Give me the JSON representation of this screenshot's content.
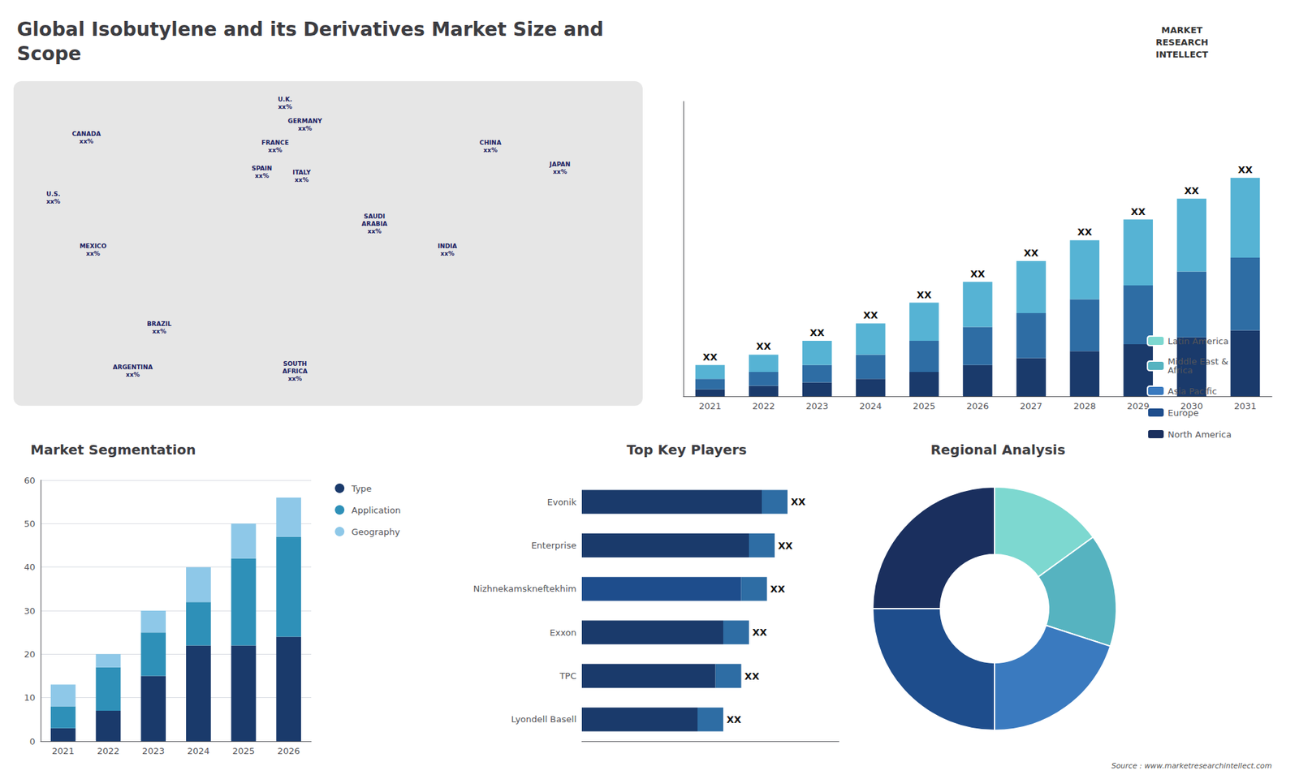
{
  "title": "Global Isobutylene and its Derivatives Market Size and\nScope",
  "annotations": [
    "MARKET\nRESEARCH\nINTELLECT",
    "Source : www.marketresearchintellect.com"
  ],
  "chart_data": [
    {
      "type": "map",
      "annotations": [
        "CANADA\nxx%",
        "U.S.\nxx%",
        "MEXICO\nxx%",
        "BRAZIL\nxx%",
        "ARGENTINA\nxx%",
        "U.K.\nxx%",
        "FRANCE\nxx%",
        "SPAIN\nxx%",
        "GERMANY\nxx%",
        "ITALY\nxx%",
        "SAUDI\nARABIA\nxx%",
        "SOUTH\nAFRICA\nxx%",
        "CHINA\nxx%",
        "INDIA\nxx%",
        "JAPAN\nxx%"
      ]
    },
    {
      "type": "bar",
      "stacked": true,
      "categories": [
        "2021",
        "2022",
        "2023",
        "2024",
        "2025",
        "2026",
        "2027",
        "2028",
        "2029",
        "2030",
        "2031"
      ],
      "series": [
        {
          "color": "#1a3a6b",
          "values": [
            2,
            3,
            4,
            5,
            7,
            9,
            11,
            13,
            15,
            17,
            19
          ]
        },
        {
          "color": "#2e6da4",
          "values": [
            3,
            4,
            5,
            7,
            9,
            11,
            13,
            15,
            17,
            19,
            21
          ]
        },
        {
          "color": "#56b3d4",
          "values": [
            4,
            5,
            7,
            9,
            11,
            13,
            15,
            17,
            19,
            21,
            23
          ],
          "value_labels": [
            "XX",
            "XX",
            "XX",
            "XX",
            "XX",
            "XX",
            "XX",
            "XX",
            "XX",
            "XX",
            "XX"
          ]
        }
      ],
      "ylim": [
        0,
        85.05
      ],
      "tick_labels": "x",
      "grid": false
    },
    {
      "type": "bar",
      "title": "Market Segmentation",
      "stacked": true,
      "categories": [
        "2021",
        "2022",
        "2023",
        "2024",
        "2025",
        "2026"
      ],
      "series": [
        {
          "name": "Type",
          "color": "#1a3a6b",
          "values": [
            3,
            7,
            15,
            22,
            22,
            24
          ]
        },
        {
          "name": "Application",
          "color": "#2e90b8",
          "values": [
            5,
            10,
            10,
            10,
            20,
            23
          ]
        },
        {
          "name": "Geography",
          "color": "#8ec8e8",
          "values": [
            5,
            3,
            5,
            8,
            8,
            9
          ]
        }
      ],
      "ylim": [
        0,
        60
      ],
      "yticks": [
        0,
        10,
        20,
        30,
        40,
        50,
        60
      ],
      "grid": true,
      "legend": "right"
    },
    {
      "type": "bar",
      "title": "Top Key Players",
      "orientation": "horizontal",
      "stacked": true,
      "categories": [
        "Evonik",
        "Enterprise",
        "Nizhnekamskneftekhim",
        "Exxon",
        "TPC",
        "Lyondell Basell"
      ],
      "series": [
        {
          "colors": [
            "#1a3a6b",
            "#1a3a6b",
            "#1e4d8c",
            "#1a3a6b",
            "#1a3a6b",
            "#1a3a6b"
          ],
          "values": [
            0.7,
            0.65,
            0.62,
            0.55,
            0.52,
            0.45
          ]
        },
        {
          "colors": [
            "#2e6da4",
            "#2e6da4",
            "#2e6da4",
            "#2e6da4",
            "#2e6da4",
            "#2e6da4"
          ],
          "values": [
            0.1,
            0.1,
            0.1,
            0.1,
            0.1,
            0.1
          ],
          "value_labels": [
            "XX",
            "XX",
            "XX",
            "XX",
            "XX",
            "XX"
          ]
        }
      ],
      "xlim": [
        0,
        1
      ],
      "tick_labels": "y",
      "grid": false
    },
    {
      "type": "pie",
      "title": "Regional Analysis",
      "categories": [
        "Latin America",
        "Middle East &\nAfrica",
        "Asia Pacific",
        "Europe",
        "North America"
      ],
      "values": [
        15,
        15,
        20,
        25,
        25
      ],
      "colors": [
        "#7dd8d0",
        "#56b3c0",
        "#3a7abf",
        "#1e4d8c",
        "#1a2f5e"
      ],
      "legend": "right"
    }
  ]
}
